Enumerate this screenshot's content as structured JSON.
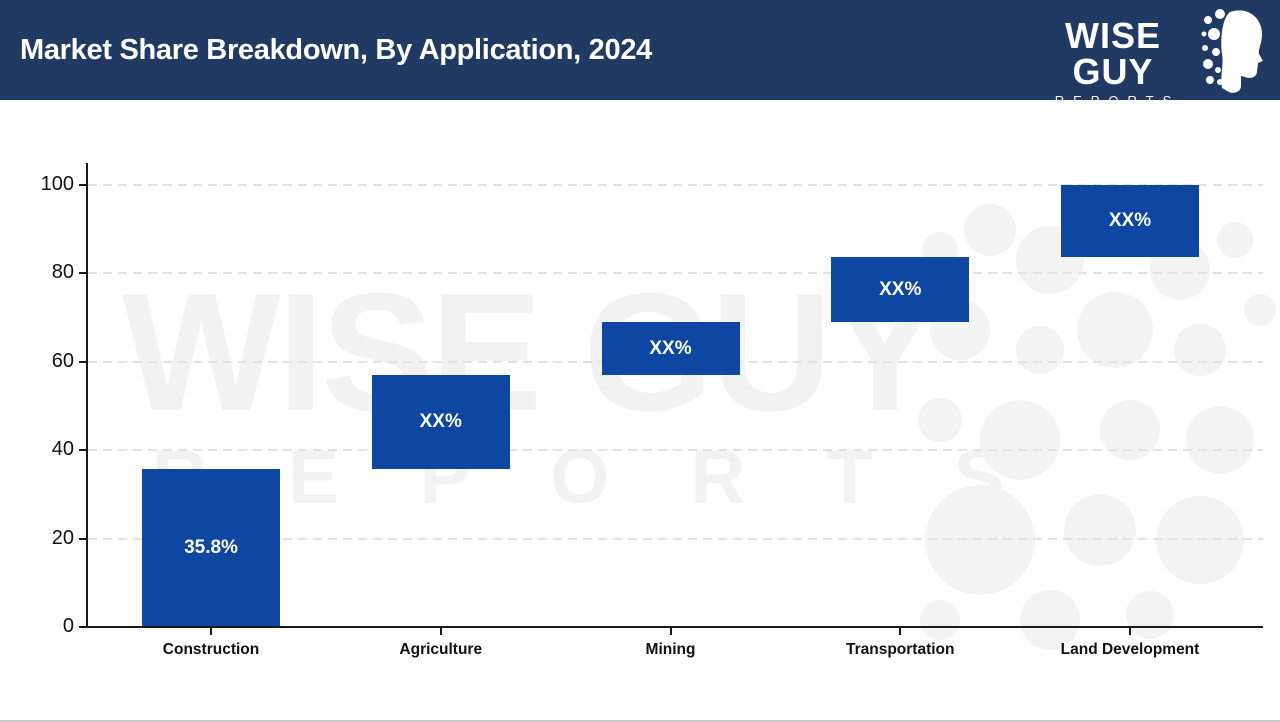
{
  "header": {
    "title": "Market Share Breakdown, By Application, 2024",
    "logo": {
      "line1": "WISE GUY",
      "line2": "REPORTS"
    },
    "bg_color": "#203a64"
  },
  "watermark": {
    "line1": "WISE GUY",
    "line2": "REPORTS"
  },
  "chart_data": {
    "type": "bar",
    "subtype": "waterfall",
    "title": "Market Share Breakdown, By Application, 2024",
    "categories": [
      "Construction",
      "Agriculture",
      "Mining",
      "Transportation",
      "Land Development"
    ],
    "segments": [
      {
        "category": "Construction",
        "start": 0,
        "end": 35.8,
        "label": "35.8%"
      },
      {
        "category": "Agriculture",
        "start": 35.8,
        "end": 57.0,
        "label": "XX%"
      },
      {
        "category": "Mining",
        "start": 57.0,
        "end": 69.0,
        "label": "XX%"
      },
      {
        "category": "Transportation",
        "start": 69.0,
        "end": 83.7,
        "label": "XX%"
      },
      {
        "category": "Land Development",
        "start": 83.7,
        "end": 100,
        "label": "XX%"
      }
    ],
    "yticks": [
      0,
      20,
      40,
      60,
      80,
      100
    ],
    "ylim": [
      0,
      105
    ],
    "xlabel": "",
    "ylabel": "",
    "bar_color": "#0d47a1",
    "grid": "horizontal-dashed",
    "legend": "none"
  }
}
